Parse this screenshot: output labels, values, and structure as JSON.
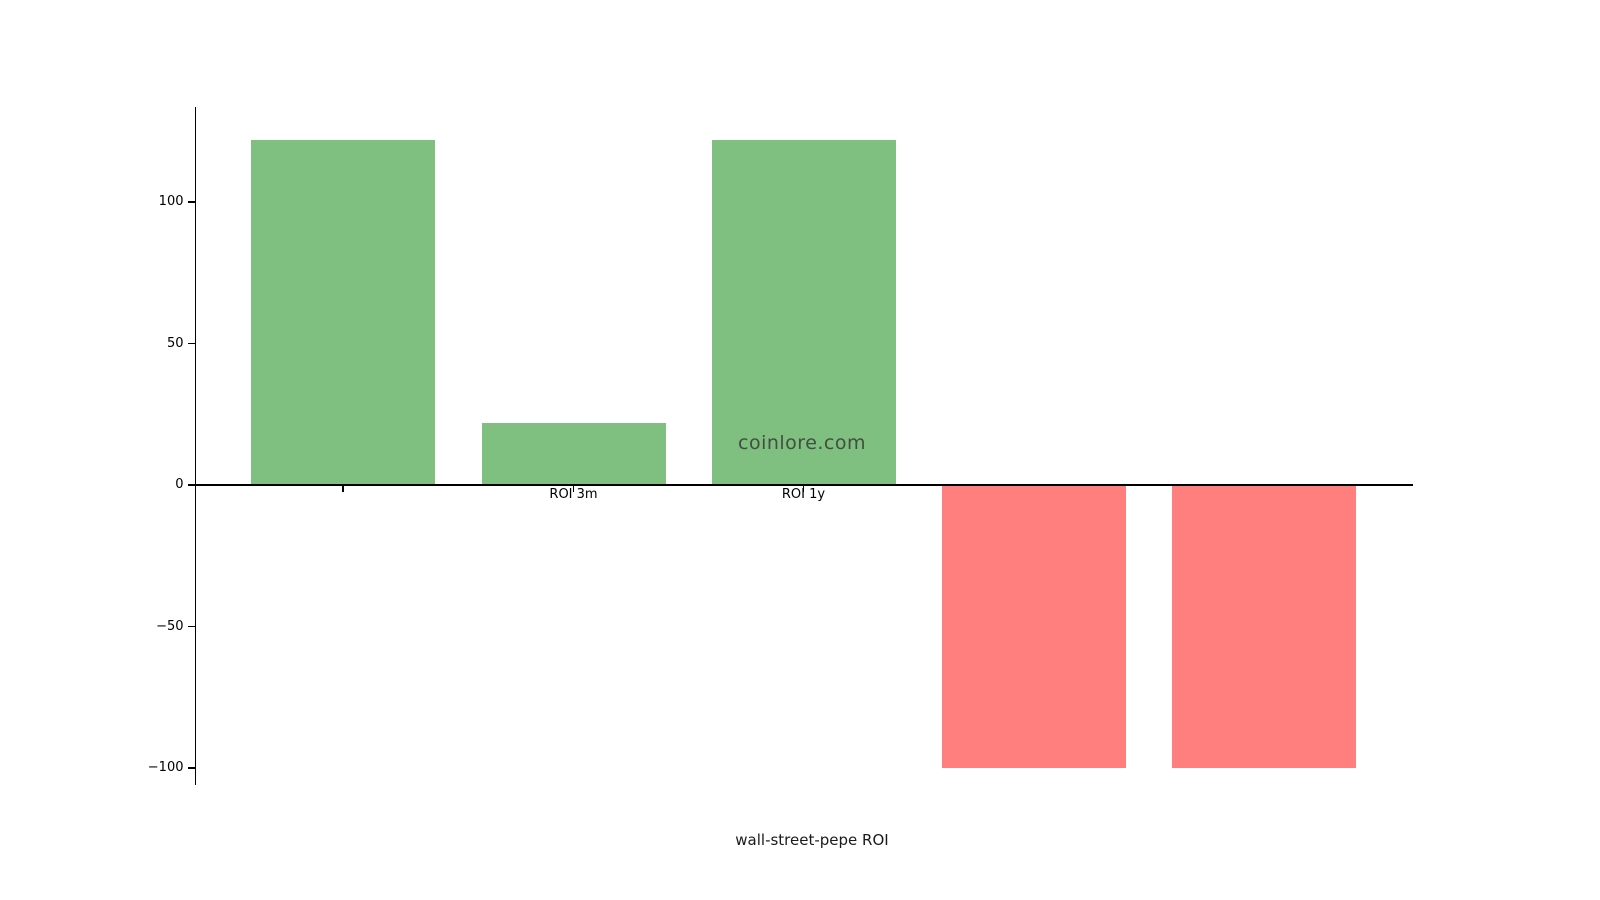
{
  "page": {
    "background_color": "#ffffff"
  },
  "chart_data": {
    "type": "bar",
    "title": "wall-street-pepe ROI",
    "watermark": "coinlore.com",
    "categories": [
      "",
      "ROI 3m",
      "ROI 1y",
      "",
      ""
    ],
    "values": [
      122,
      22,
      122,
      -100,
      -100
    ],
    "bar_colors": [
      "#7fbf7f",
      "#7fbf7f",
      "#7fbf7f",
      "#ff7f7f",
      "#ff7f7f"
    ],
    "x_tick_shown": [
      true,
      true,
      true,
      false,
      false
    ],
    "y_tick_values": [
      100,
      50,
      0,
      -50,
      -100
    ],
    "y_tick_labels": [
      "100",
      "50",
      "0",
      "−50",
      "−100"
    ],
    "ylim": [
      -106,
      134
    ],
    "xlabel": "wall-street-pepe ROI",
    "ylabel": "",
    "grid": false,
    "legend": "none",
    "colors": {
      "positive": "#7fbf7f",
      "negative": "#ff7f7f",
      "axis": "#000000",
      "tick_text": "#000000",
      "watermark": "#373a37",
      "title_text": "#1a1a1a"
    }
  }
}
